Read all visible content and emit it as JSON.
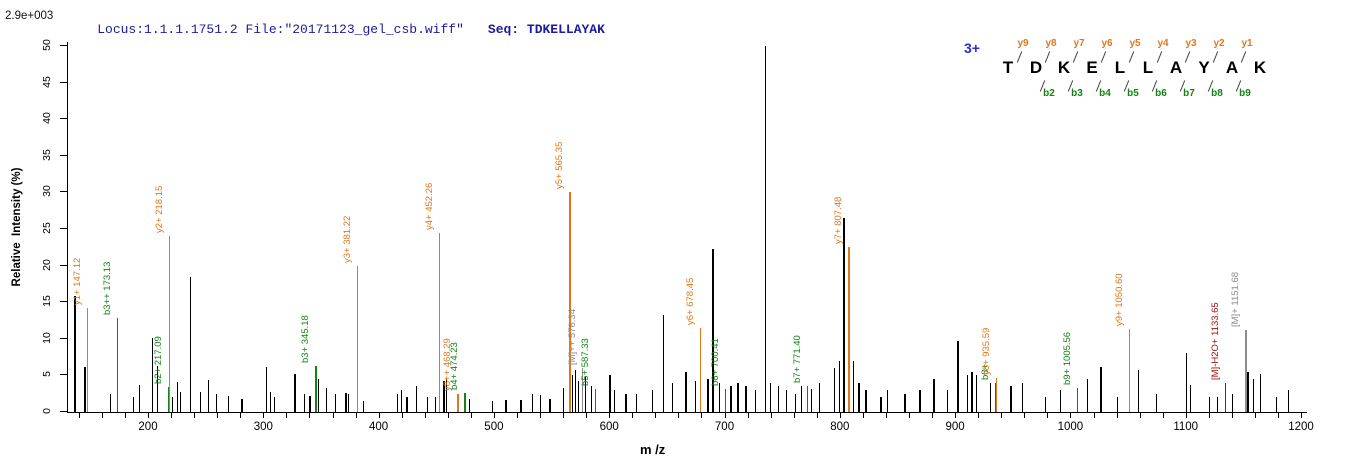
{
  "header": {
    "locus": "Locus:1.1.1.1751.2 File:\"20171123_gel_csb.wiff\"",
    "seq": "Seq: TDKELLAYAK",
    "scale_label": "2.9e+003"
  },
  "peptide": {
    "charge": "3+",
    "sequence": [
      "T",
      "D",
      "K",
      "E",
      "L",
      "L",
      "A",
      "Y",
      "A",
      "K"
    ],
    "y_ions": [
      "y9",
      "y8",
      "y7",
      "y6",
      "y5",
      "y4",
      "y3",
      "y2",
      "y1"
    ],
    "b_ions": [
      "b2",
      "b3",
      "b4",
      "b5",
      "b6",
      "b7",
      "b8",
      "b9"
    ]
  },
  "colors": {
    "y": "#e2761b",
    "b": "#128412",
    "M": "#8c8c8c",
    "M_loss": "#a31111",
    "peak": "#000000",
    "title": "#1b1b9e",
    "charge": "#2a2ad4"
  },
  "chart_data": {
    "type": "bar",
    "subtype": "ms2_peptide_fragmentation_spectrum",
    "title": "Locus:1.1.1.1751.2 File:\"20171123_gel_csb.wiff\"   Seq: TDKELLAYAK",
    "xlabel": "m /z",
    "ylabel": "Relative  Intensity (%)",
    "scale_label": "2.9e+003",
    "xlim": [
      130,
      1205
    ],
    "ylim": [
      0,
      50
    ],
    "x_major_ticks": [
      200,
      300,
      400,
      500,
      600,
      700,
      800,
      900,
      1000,
      1100,
      1200
    ],
    "x_minor_tick_step": 20,
    "y_ticks": [
      0,
      5,
      10,
      15,
      20,
      25,
      30,
      35,
      40,
      45,
      50
    ],
    "legend": "orange = y ions, green = b ions, gray = precursor [M], dark red = neutral loss",
    "peaks": [
      {
        "mz": 136.0,
        "pct": 15.8
      },
      {
        "mz": 144.7,
        "pct": 6.2
      },
      {
        "mz": 147.12,
        "pct": 14.2,
        "label": "y1+ 147.12",
        "ion": "y"
      },
      {
        "mz": 167.0,
        "pct": 2.4
      },
      {
        "mz": 173.13,
        "pct": 12.9,
        "label": "b3++ 173.13",
        "ion": "b"
      },
      {
        "mz": 187.0,
        "pct": 2.0
      },
      {
        "mz": 192.0,
        "pct": 3.7
      },
      {
        "mz": 203.4,
        "pct": 10.1
      },
      {
        "mz": 207.8,
        "pct": 6.3
      },
      {
        "mz": 217.09,
        "pct": 3.4,
        "label": "b2+ 217.09",
        "ion": "b"
      },
      {
        "mz": 218.15,
        "pct": 24.0,
        "label": "y2+ 218.15",
        "ion": "y"
      },
      {
        "mz": 220.8,
        "pct": 2.0
      },
      {
        "mz": 225.0,
        "pct": 4.1
      },
      {
        "mz": 227.7,
        "pct": 2.7
      },
      {
        "mz": 236.4,
        "pct": 18.4
      },
      {
        "mz": 245.0,
        "pct": 2.7
      },
      {
        "mz": 252.0,
        "pct": 4.4
      },
      {
        "mz": 259.0,
        "pct": 2.5
      },
      {
        "mz": 269.0,
        "pct": 2.2
      },
      {
        "mz": 281.0,
        "pct": 1.8
      },
      {
        "mz": 302.0,
        "pct": 6.2
      },
      {
        "mz": 305.8,
        "pct": 2.8
      },
      {
        "mz": 309.0,
        "pct": 2.0
      },
      {
        "mz": 327.0,
        "pct": 5.2
      },
      {
        "mz": 335.0,
        "pct": 2.4
      },
      {
        "mz": 340.0,
        "pct": 2.2
      },
      {
        "mz": 345.18,
        "pct": 6.3,
        "label": "b3+ 345.18",
        "ion": "b"
      },
      {
        "mz": 347.5,
        "pct": 4.5
      },
      {
        "mz": 354.0,
        "pct": 3.3
      },
      {
        "mz": 362.0,
        "pct": 2.4
      },
      {
        "mz": 371.0,
        "pct": 2.6
      },
      {
        "mz": 373.5,
        "pct": 2.4
      },
      {
        "mz": 381.22,
        "pct": 20.0,
        "label": "y3+ 381.22",
        "ion": "y"
      },
      {
        "mz": 386.0,
        "pct": 1.5
      },
      {
        "mz": 416.0,
        "pct": 2.4
      },
      {
        "mz": 419.0,
        "pct": 3.0
      },
      {
        "mz": 424.0,
        "pct": 2.0
      },
      {
        "mz": 432.0,
        "pct": 3.5
      },
      {
        "mz": 442.0,
        "pct": 2.0
      },
      {
        "mz": 449.0,
        "pct": 2.0
      },
      {
        "mz": 452.26,
        "pct": 24.5,
        "label": "y4+ 452.26",
        "ion": "y"
      },
      {
        "mz": 456.0,
        "pct": 4.2
      },
      {
        "mz": 458.5,
        "pct": 4.5
      },
      {
        "mz": 468.29,
        "pct": 2.4,
        "label": "y8++ 468.29",
        "ion": "y"
      },
      {
        "mz": 474.23,
        "pct": 2.6,
        "label": "b4+ 474.23",
        "ion": "b"
      },
      {
        "mz": 478.0,
        "pct": 1.8
      },
      {
        "mz": 498.0,
        "pct": 1.5
      },
      {
        "mz": 510.0,
        "pct": 1.6
      },
      {
        "mz": 523.0,
        "pct": 1.6
      },
      {
        "mz": 533.0,
        "pct": 2.4
      },
      {
        "mz": 540.0,
        "pct": 2.3
      },
      {
        "mz": 548.0,
        "pct": 1.8
      },
      {
        "mz": 560.0,
        "pct": 3.3
      },
      {
        "mz": 565.35,
        "pct": 30.0,
        "label": "y5+ 565.35",
        "ion": "y"
      },
      {
        "mz": 567.5,
        "pct": 5.0
      },
      {
        "mz": 570.0,
        "pct": 5.8
      },
      {
        "mz": 573.0,
        "pct": 4.3
      },
      {
        "mz": 576.34,
        "pct": 6.0,
        "label": "[M]++ 576.34",
        "ion": "M"
      },
      {
        "mz": 579.0,
        "pct": 4.8
      },
      {
        "mz": 584.0,
        "pct": 3.5
      },
      {
        "mz": 587.33,
        "pct": 3.2,
        "label": "b5+ 587.33",
        "ion": "b"
      },
      {
        "mz": 600.0,
        "pct": 5.0
      },
      {
        "mz": 604.0,
        "pct": 3.0
      },
      {
        "mz": 614.0,
        "pct": 2.5
      },
      {
        "mz": 623.0,
        "pct": 2.5
      },
      {
        "mz": 637.0,
        "pct": 3.0
      },
      {
        "mz": 646.7,
        "pct": 13.3
      },
      {
        "mz": 654.0,
        "pct": 4.0
      },
      {
        "mz": 666.0,
        "pct": 5.5
      },
      {
        "mz": 674.0,
        "pct": 4.2
      },
      {
        "mz": 678.45,
        "pct": 11.5,
        "label": "y6+ 678.45",
        "ion": "y"
      },
      {
        "mz": 685.0,
        "pct": 4.5
      },
      {
        "mz": 689.5,
        "pct": 22.3
      },
      {
        "mz": 695.0,
        "pct": 4.0
      },
      {
        "mz": 700.41,
        "pct": 3.2,
        "label": "b6+ 700.41",
        "ion": "b"
      },
      {
        "mz": 705.0,
        "pct": 3.5
      },
      {
        "mz": 711.0,
        "pct": 4.0
      },
      {
        "mz": 718.0,
        "pct": 3.5
      },
      {
        "mz": 726.0,
        "pct": 3.0
      },
      {
        "mz": 735.2,
        "pct": 50.0
      },
      {
        "mz": 739.0,
        "pct": 4.0
      },
      {
        "mz": 746.0,
        "pct": 3.5
      },
      {
        "mz": 753.0,
        "pct": 3.0
      },
      {
        "mz": 761.0,
        "pct": 2.5
      },
      {
        "mz": 766.0,
        "pct": 3.5
      },
      {
        "mz": 771.4,
        "pct": 3.5,
        "label": "b7+ 771.40",
        "ion": "b"
      },
      {
        "mz": 775.0,
        "pct": 3.2
      },
      {
        "mz": 782.0,
        "pct": 4.0
      },
      {
        "mz": 795.0,
        "pct": 6.0
      },
      {
        "mz": 799.0,
        "pct": 7.0
      },
      {
        "mz": 803.0,
        "pct": 26.5
      },
      {
        "mz": 807.48,
        "pct": 22.6,
        "label": "y7+ 807.48",
        "ion": "y"
      },
      {
        "mz": 811.0,
        "pct": 7.0
      },
      {
        "mz": 816.0,
        "pct": 4.0
      },
      {
        "mz": 822.0,
        "pct": 3.0
      },
      {
        "mz": 835.0,
        "pct": 2.0
      },
      {
        "mz": 841.0,
        "pct": 3.0
      },
      {
        "mz": 856.0,
        "pct": 2.5
      },
      {
        "mz": 869.0,
        "pct": 3.0
      },
      {
        "mz": 881.0,
        "pct": 4.5
      },
      {
        "mz": 893.0,
        "pct": 3.0
      },
      {
        "mz": 902.0,
        "pct": 9.7
      },
      {
        "mz": 910.0,
        "pct": 5.0
      },
      {
        "mz": 914.0,
        "pct": 5.5
      },
      {
        "mz": 918.0,
        "pct": 5.0
      },
      {
        "mz": 930.0,
        "pct": 4.0
      },
      {
        "mz": 934.49,
        "pct": 4.0,
        "label": "b8+",
        "ion": "b"
      },
      {
        "mz": 935.59,
        "pct": 4.7,
        "label": "y8+ 935.59",
        "ion": "y"
      },
      {
        "mz": 948.0,
        "pct": 3.5
      },
      {
        "mz": 958.0,
        "pct": 4.0
      },
      {
        "mz": 978.0,
        "pct": 2.0
      },
      {
        "mz": 991.0,
        "pct": 3.0
      },
      {
        "mz": 1005.56,
        "pct": 3.3,
        "label": "b9+ 1005.56",
        "ion": "b"
      },
      {
        "mz": 1014.0,
        "pct": 4.5
      },
      {
        "mz": 1026.0,
        "pct": 6.2
      },
      {
        "mz": 1040.0,
        "pct": 2.0
      },
      {
        "mz": 1050.6,
        "pct": 11.4,
        "label": "y9+ 1050.60",
        "ion": "y"
      },
      {
        "mz": 1058.5,
        "pct": 5.7
      },
      {
        "mz": 1074.0,
        "pct": 2.5
      },
      {
        "mz": 1100.0,
        "pct": 8.0
      },
      {
        "mz": 1103.5,
        "pct": 3.7
      },
      {
        "mz": 1120.0,
        "pct": 2.0
      },
      {
        "mz": 1127.0,
        "pct": 2.0
      },
      {
        "mz": 1133.65,
        "pct": 4.0,
        "label": "[M]-H2O+ 1133.65",
        "ion": "M_loss"
      },
      {
        "mz": 1140.0,
        "pct": 2.5
      },
      {
        "mz": 1151.68,
        "pct": 11.2,
        "label": "[M]+ 1151.68",
        "ion": "M"
      },
      {
        "mz": 1153.3,
        "pct": 5.5
      },
      {
        "mz": 1158.3,
        "pct": 4.5
      },
      {
        "mz": 1164.4,
        "pct": 5.2
      },
      {
        "mz": 1178.0,
        "pct": 2.0
      },
      {
        "mz": 1188.7,
        "pct": 3.0
      }
    ]
  }
}
